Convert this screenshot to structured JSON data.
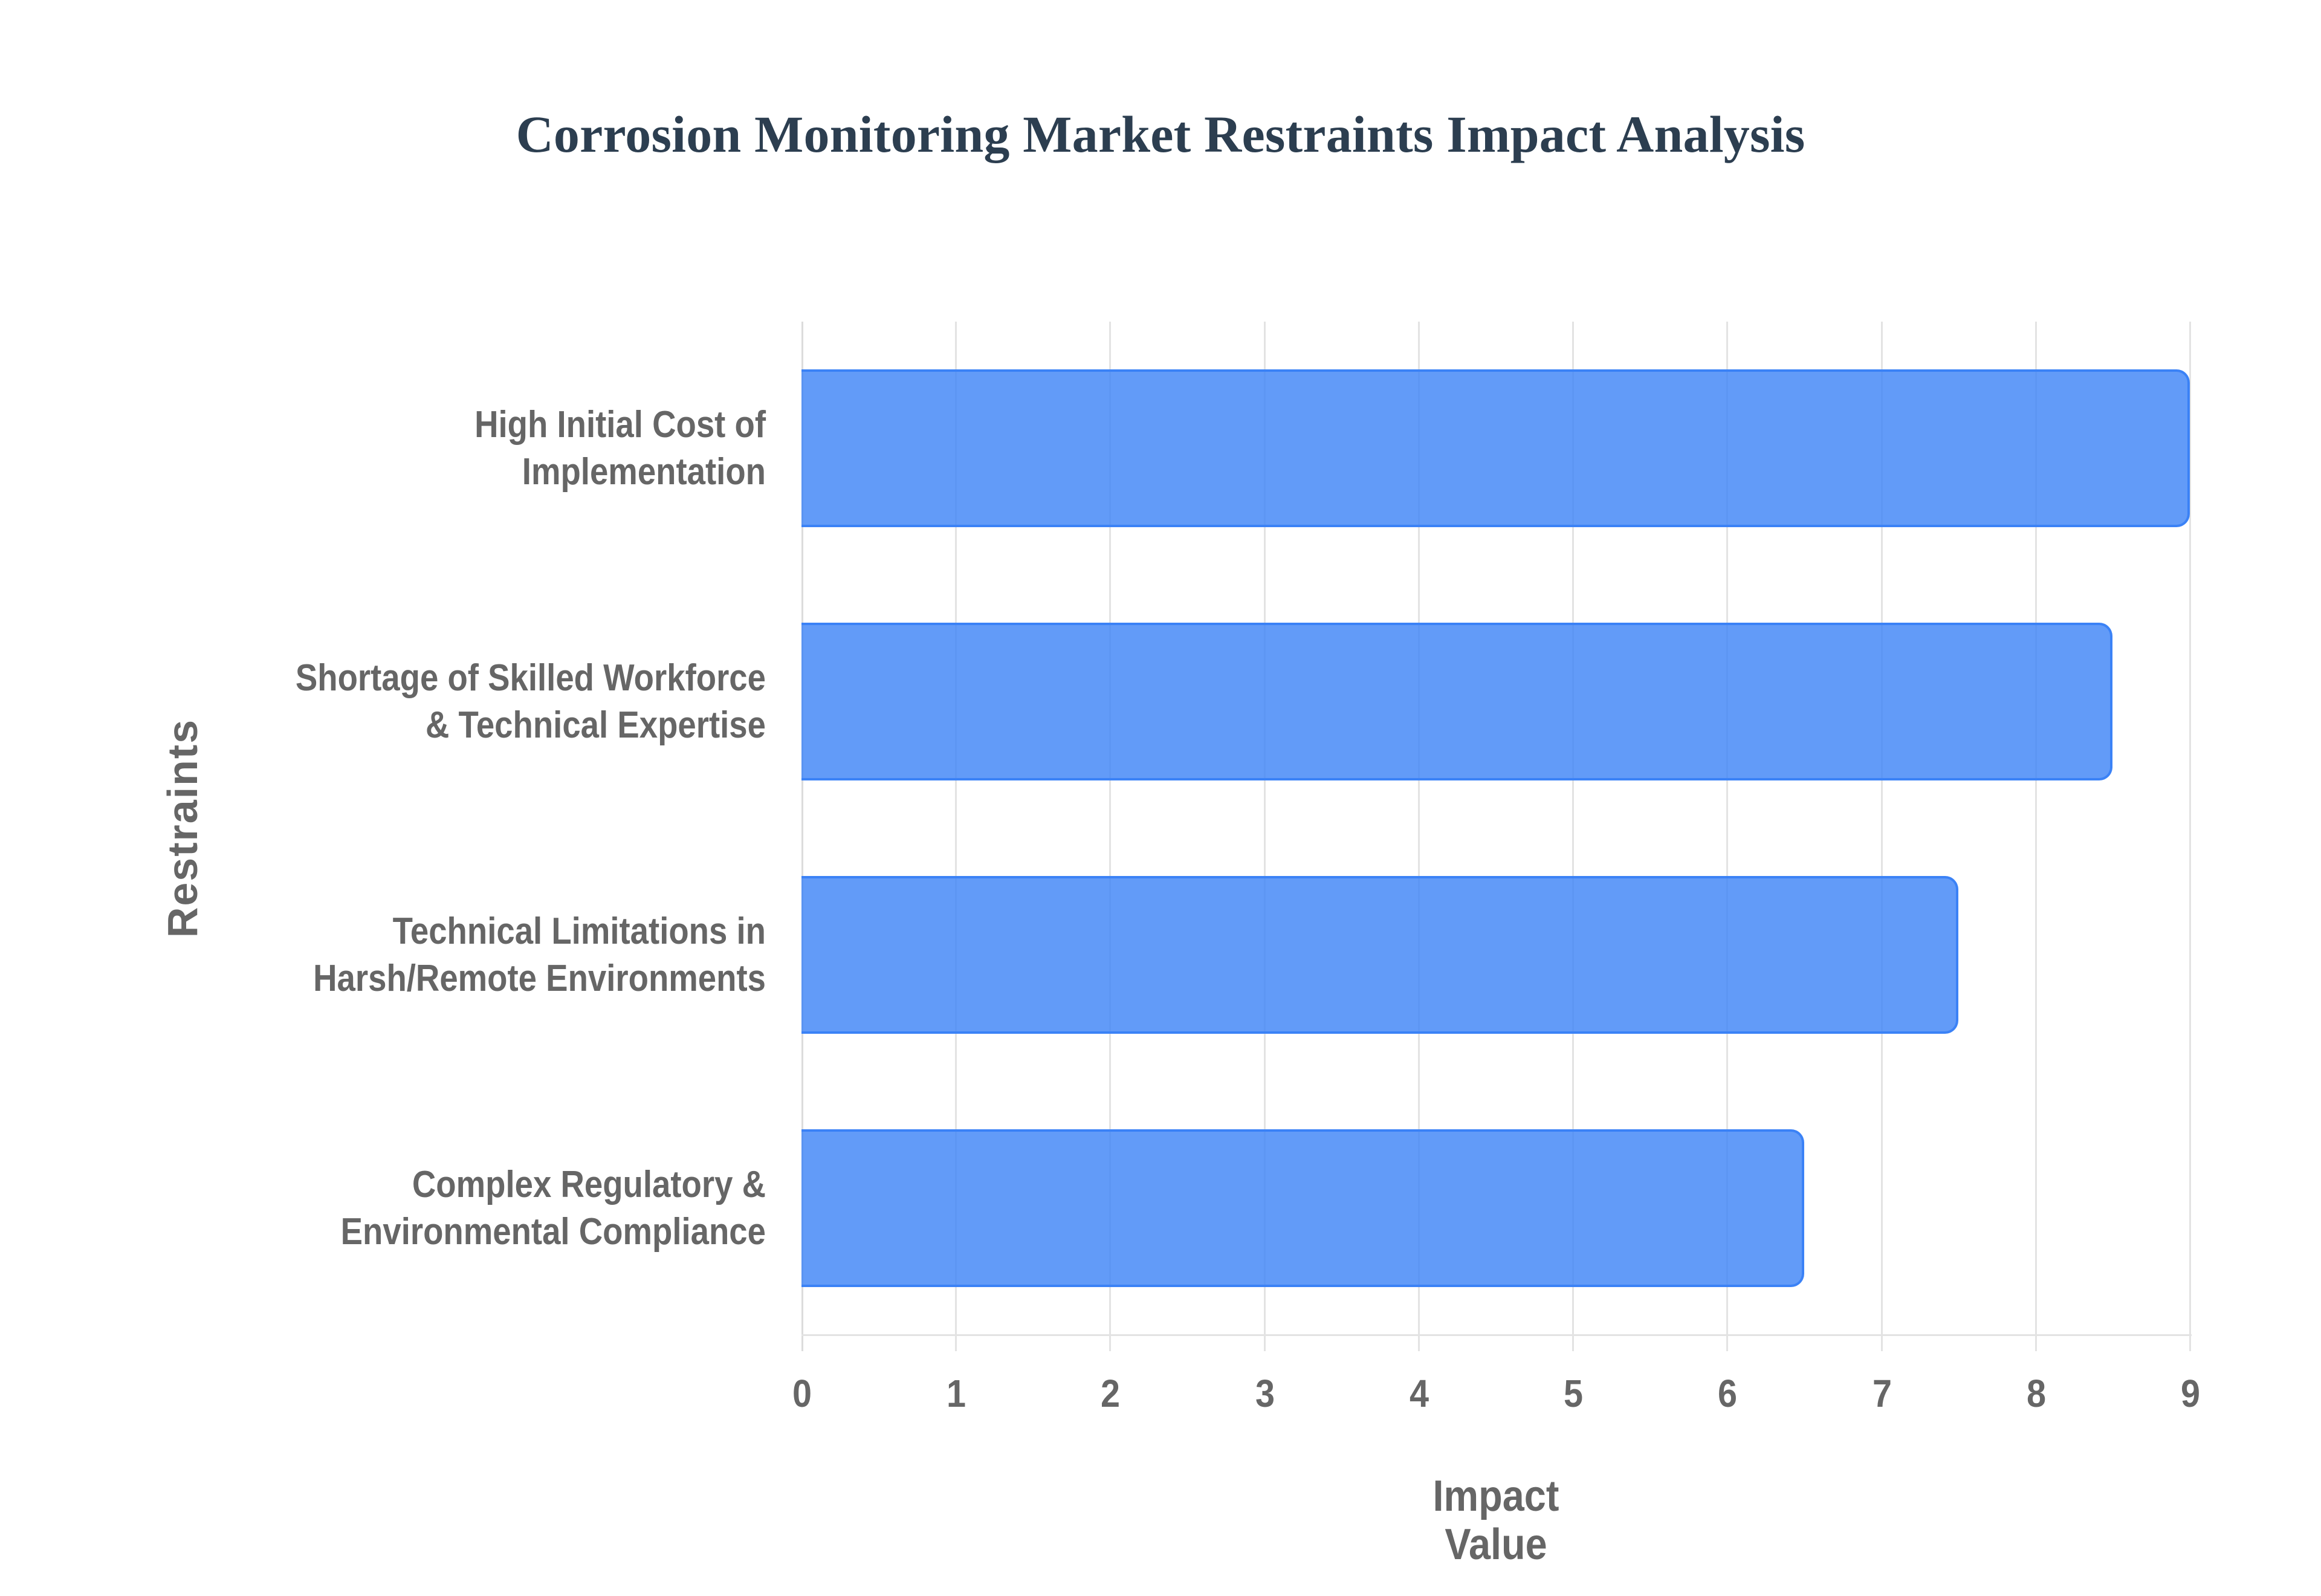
{
  "chart_data": {
    "type": "bar",
    "orientation": "horizontal",
    "title": "Corrosion Monitoring Market Restraints Impact Analysis",
    "xlabel": "Impact Value",
    "ylabel": "Restraints",
    "categories": [
      "High Initial Cost of\nImplementation",
      "Shortage of Skilled Workforce\n& Technical Expertise",
      "Technical Limitations in\nHarsh/Remote Environments",
      "Complex Regulatory &\nEnvironmental Compliance"
    ],
    "values": [
      9,
      8.5,
      7.5,
      6.5
    ],
    "xlim": [
      0,
      9
    ],
    "x_ticks": [
      "0",
      "1",
      "2",
      "3",
      "4",
      "5",
      "6",
      "7",
      "8",
      "9"
    ],
    "grid": true,
    "legend": "none",
    "colors": {
      "bar_fill": "#6199f5",
      "bar_border": "#3b82f6",
      "title": "#2c3e50",
      "text": "#666666",
      "grid": "#e3e3e3"
    }
  }
}
